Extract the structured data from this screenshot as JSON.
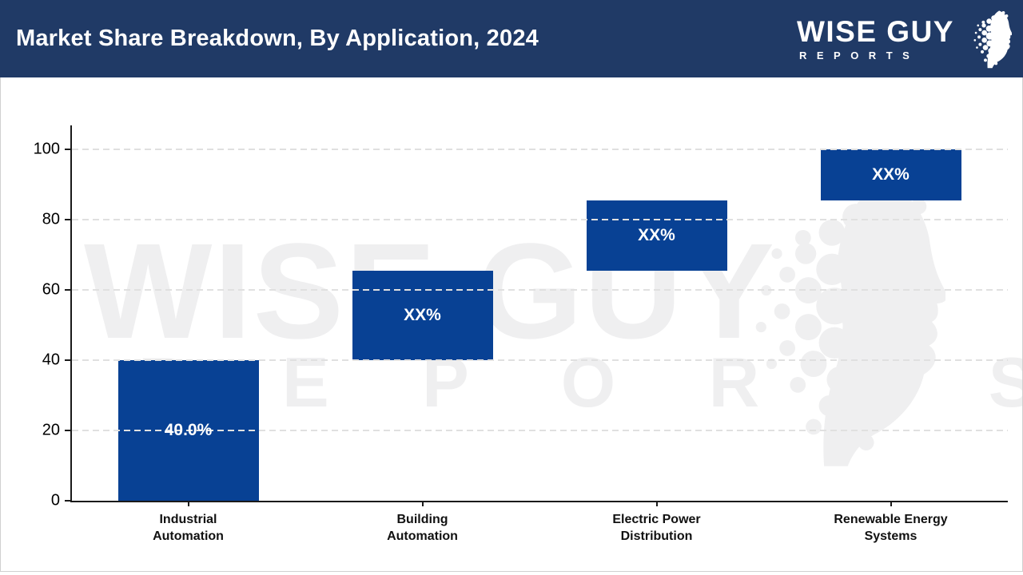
{
  "header": {
    "title": "Market Share Breakdown, By Application, 2024",
    "logo": {
      "line1": "WISE GUY",
      "line2": "REPORTS"
    }
  },
  "watermark": {
    "line1": "WISE GUY",
    "line2": "R E P O R T S"
  },
  "chart_data": {
    "type": "bar",
    "subtype": "waterfall",
    "title": "Market Share Breakdown, By Application, 2024",
    "categories": [
      "Industrial\nAutomation",
      "Building\nAutomation",
      "Electric Power\nDistribution",
      "Renewable Energy\nSystems"
    ],
    "segments": [
      {
        "category": "Industrial Automation",
        "start": 0,
        "end": 40,
        "label": "40.0%"
      },
      {
        "category": "Building Automation",
        "start": 40,
        "end": 65.5,
        "label": "XX%"
      },
      {
        "category": "Electric Power Distribution",
        "start": 65.5,
        "end": 85.5,
        "label": "XX%"
      },
      {
        "category": "Renewable Energy Systems",
        "start": 85.5,
        "end": 100,
        "label": "XX%"
      }
    ],
    "ylim": [
      0,
      100
    ],
    "yticks": [
      0,
      20,
      40,
      60,
      80,
      100
    ],
    "grid": "horizontal-dashed",
    "legend": "none"
  },
  "colors": {
    "header_bg": "#203a66",
    "bar": "#084194",
    "bar_label": "#ffffff",
    "grid": "#e0e0e0",
    "axis": "#1a1a1a",
    "watermark": "#efeff0",
    "card_border": "#d0d0d0"
  }
}
